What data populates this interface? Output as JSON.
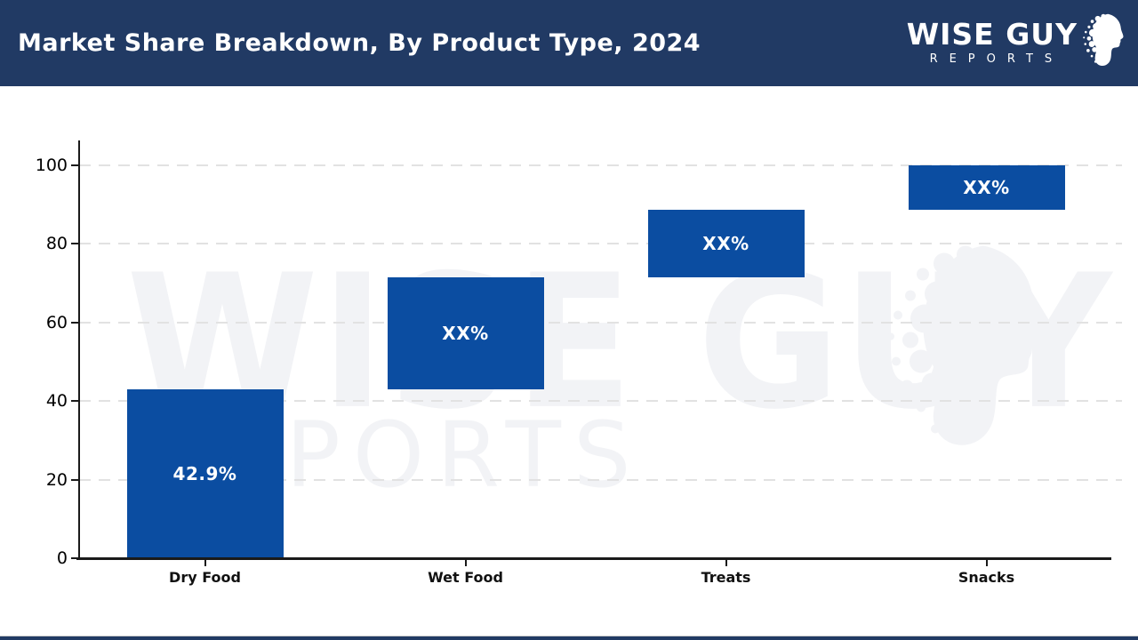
{
  "header": {
    "title": "Market Share Breakdown, By Product Type, 2024",
    "background_color": "#213a64",
    "logo": {
      "wordmark": "WISE GUY",
      "subtitle": "REPORTS"
    }
  },
  "watermark": {
    "wordmark": "WISE GUY",
    "subtitle": "REPORTS"
  },
  "chart_data": {
    "type": "bar",
    "subtype": "waterfall",
    "title": "Market Share Breakdown, By Product Type, 2024",
    "categories": [
      "Dry Food",
      "Wet Food",
      "Treats",
      "Snacks"
    ],
    "segments": [
      {
        "category": "Dry Food",
        "start": 0,
        "end": 42.9,
        "value": 42.9,
        "label": "42.9%"
      },
      {
        "category": "Wet Food",
        "start": 42.9,
        "end": 71.4,
        "value": 28.5,
        "label": "XX%"
      },
      {
        "category": "Treats",
        "start": 71.4,
        "end": 88.6,
        "value": 17.2,
        "label": "XX%"
      },
      {
        "category": "Snacks",
        "start": 88.6,
        "end": 100,
        "value": 11.4,
        "label": "XX%"
      }
    ],
    "bar_labels": [
      "42.9%",
      "XX%",
      "XX%",
      "XX%"
    ],
    "ylim": [
      0,
      100
    ],
    "yticks": [
      0,
      20,
      40,
      60,
      80,
      100
    ],
    "xlabel": "",
    "ylabel": "",
    "grid": "horizontal-dashed",
    "legend": "none",
    "bar_color": "#0b4da1",
    "bar_label_color": "#ffffff",
    "axis_color": "#1a1a1a",
    "gridline_color": "#e2e2e2"
  }
}
